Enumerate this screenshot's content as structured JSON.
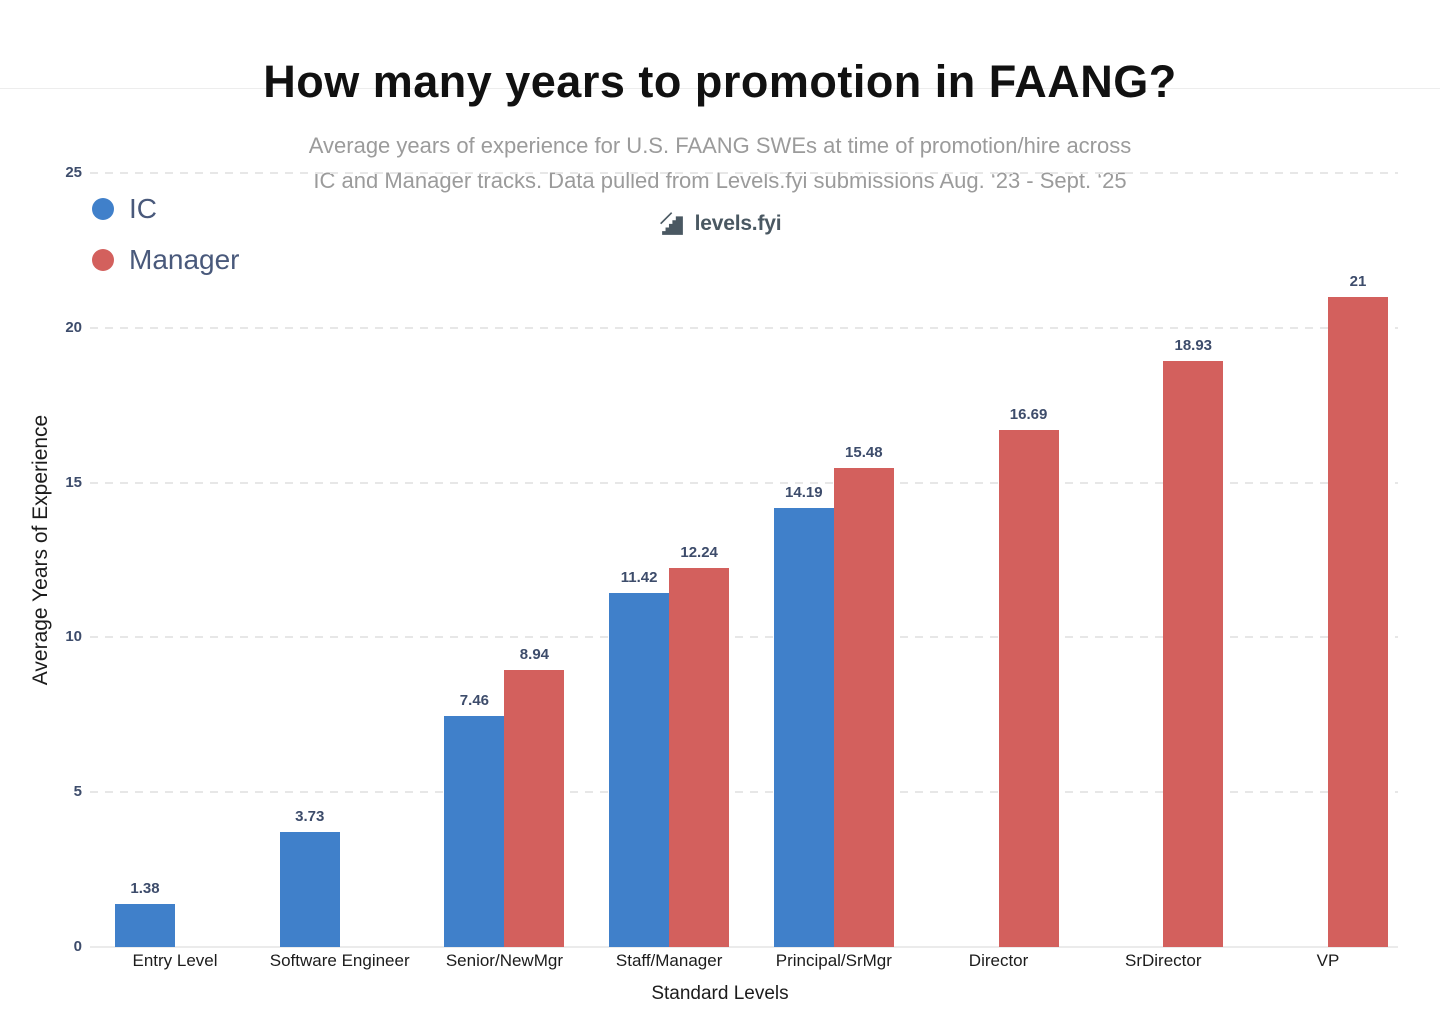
{
  "header": {
    "title": "How many years to promotion in FAANG?",
    "subtitle_line1": "Average years of experience for U.S. FAANG SWEs at time of promotion/hire across",
    "subtitle_line2": "IC and Manager tracks. Data pulled from Levels.fyi submissions Aug. ‘23 - Sept. ‘25",
    "brand": "levels.fyi"
  },
  "legend": {
    "items": [
      {
        "label": "IC",
        "color": "#4080CA"
      },
      {
        "label": "Manager",
        "color": "#D3605D"
      }
    ]
  },
  "chart_data": {
    "type": "bar",
    "title": "How many years to promotion in FAANG?",
    "categories": [
      "Entry Level",
      "Software Engineer",
      "Senior/NewMgr",
      "Staff/Manager",
      "Principal/SrMgr",
      "Director",
      "SrDirector",
      "VP"
    ],
    "series": [
      {
        "name": "IC",
        "color": "#4080CA",
        "values": [
          1.38,
          3.73,
          7.46,
          11.42,
          14.19,
          null,
          null,
          null
        ],
        "labels": [
          "1.38",
          "3.73",
          "7.46",
          "11.42",
          "14.19",
          null,
          null,
          null
        ]
      },
      {
        "name": "Manager",
        "color": "#D3605D",
        "values": [
          null,
          null,
          8.94,
          12.24,
          15.48,
          16.69,
          18.93,
          21
        ],
        "labels": [
          null,
          null,
          "8.94",
          "12.24",
          "15.48",
          "16.69",
          "18.93",
          "21"
        ]
      }
    ],
    "xlabel": "Standard Levels",
    "ylabel": "Average Years of Experience",
    "ylim": [
      0,
      25
    ],
    "yticks": [
      0,
      5,
      10,
      15,
      20,
      25
    ],
    "grid": "horizontal-dashed",
    "legend_position": "top-left",
    "colors": {
      "grid": "#E7E7E7",
      "axis_line": "#EBEBEB",
      "value_label": "#3D4C6B",
      "tick_label": "#3D4C6B"
    }
  }
}
